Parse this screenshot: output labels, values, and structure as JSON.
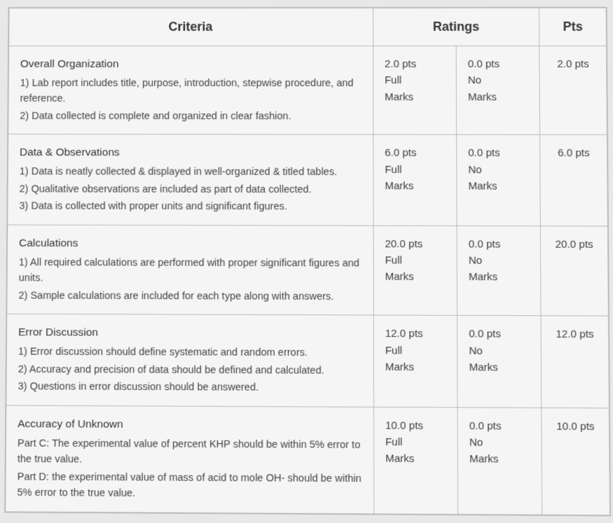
{
  "header": {
    "criteria": "Criteria",
    "ratings": "Ratings",
    "pts": "Pts"
  },
  "rows": [
    {
      "title": "Overall Organization",
      "items": [
        "1) Lab report includes title, purpose, introduction, stepwise procedure, and reference.",
        "2) Data collected is complete and organized in clear fashion."
      ],
      "full_pts": "2.0 pts",
      "full_label1": "Full",
      "full_label2": "Marks",
      "no_pts": "0.0 pts",
      "no_label1": "No",
      "no_label2": "Marks",
      "pts": "2.0 pts"
    },
    {
      "title": "Data & Observations",
      "items": [
        "1) Data is neatly collected & displayed in well-organized & titled tables.",
        "2) Qualitative observations are included as part of data collected.",
        "3) Data is collected with proper units and significant figures."
      ],
      "full_pts": "6.0 pts",
      "full_label1": "Full",
      "full_label2": "Marks",
      "no_pts": "0.0 pts",
      "no_label1": "No",
      "no_label2": "Marks",
      "pts": "6.0 pts"
    },
    {
      "title": "Calculations",
      "items": [
        "1) All required calculations are performed with proper significant figures and units.",
        "2) Sample calculations are included for each type along with answers."
      ],
      "full_pts": "20.0 pts",
      "full_label1": "Full",
      "full_label2": "Marks",
      "no_pts": "0.0 pts",
      "no_label1": "No",
      "no_label2": "Marks",
      "pts": "20.0 pts"
    },
    {
      "title": "Error Discussion",
      "items": [
        "1) Error discussion should define systematic and random errors.",
        "2) Accuracy and precision of data should be defined and calculated.",
        "3) Questions in error discussion should be answered."
      ],
      "full_pts": "12.0 pts",
      "full_label1": "Full",
      "full_label2": "Marks",
      "no_pts": "0.0 pts",
      "no_label1": "No",
      "no_label2": "Marks",
      "pts": "12.0 pts"
    },
    {
      "title": "Accuracy of Unknown",
      "items": [
        "Part C: The experimental value of percent KHP should be within 5% error to the true value.",
        "Part D: the experimental value of mass of acid to mole OH- should be within 5% error to the true value."
      ],
      "full_pts": "10.0 pts",
      "full_label1": "Full",
      "full_label2": "Marks",
      "no_pts": "0.0 pts",
      "no_label1": "No",
      "no_label2": "Marks",
      "pts": "10.0 pts"
    }
  ]
}
